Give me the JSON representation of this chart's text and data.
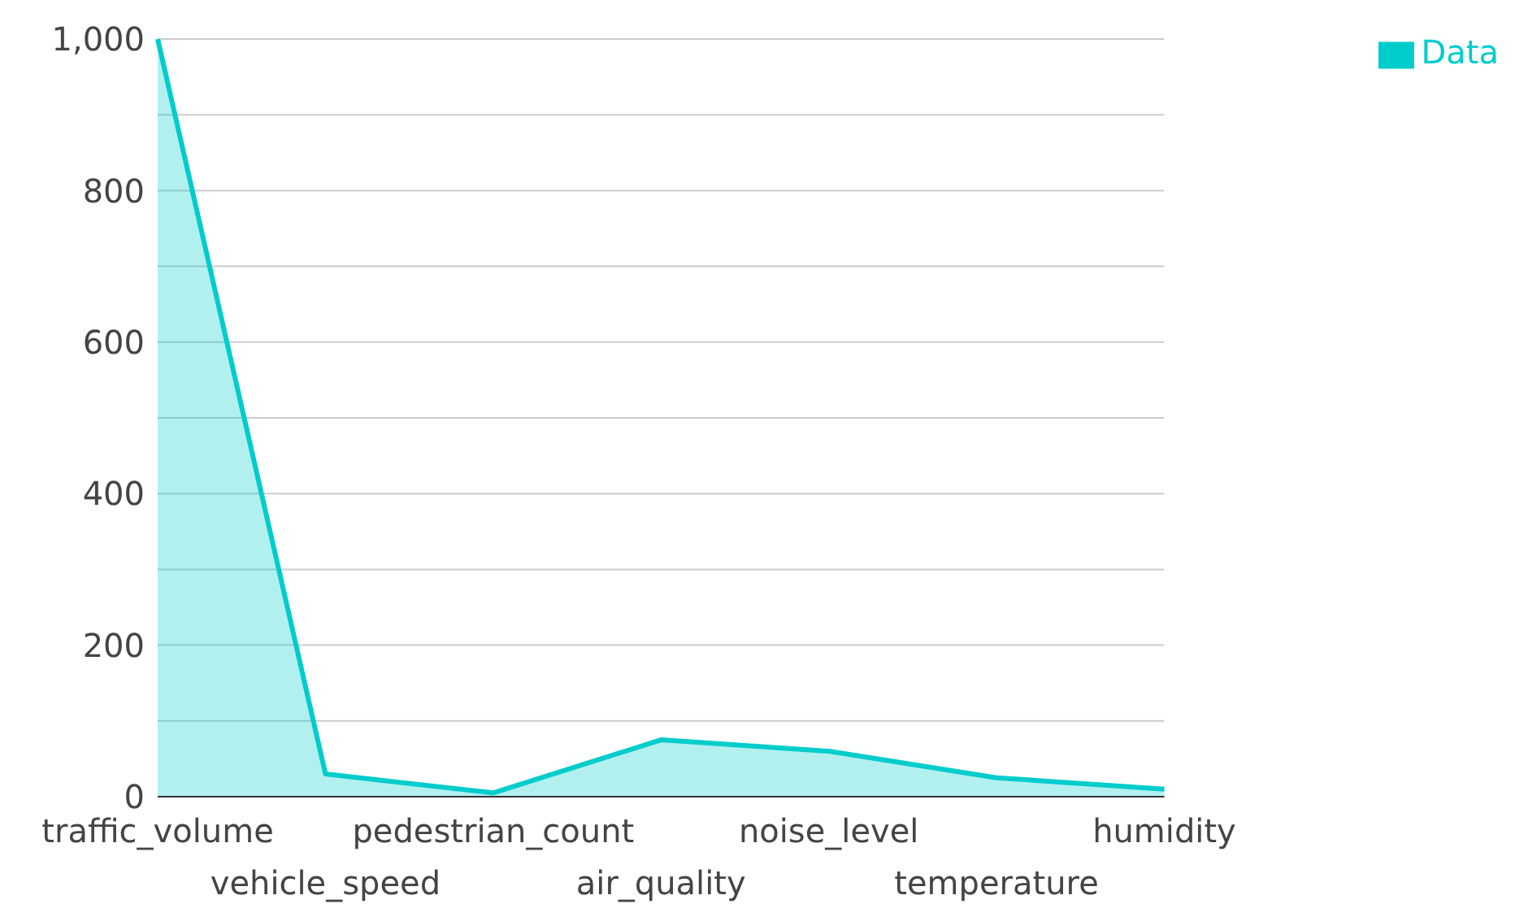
{
  "chart_data": {
    "type": "area",
    "categories": [
      "traffic_volume",
      "vehicle_speed",
      "pedestrian_count",
      "air_quality",
      "noise_level",
      "temperature",
      "humidity"
    ],
    "series": [
      {
        "name": "Data",
        "color": "#00cccc",
        "values": [
          1000,
          30,
          5,
          75,
          60,
          25,
          10
        ]
      }
    ],
    "ylim": [
      0,
      1000
    ],
    "yticks": [
      0,
      {
        "value": 100,
        "label": null
      },
      200,
      {
        "value": 300,
        "label": null
      },
      400,
      {
        "value": 500,
        "label": null
      },
      600,
      {
        "value": 700,
        "label": null
      },
      800,
      {
        "value": 900,
        "label": null
      },
      {
        "value": 1000,
        "label": "1,000"
      }
    ],
    "grid": "y",
    "legend": "top right"
  }
}
